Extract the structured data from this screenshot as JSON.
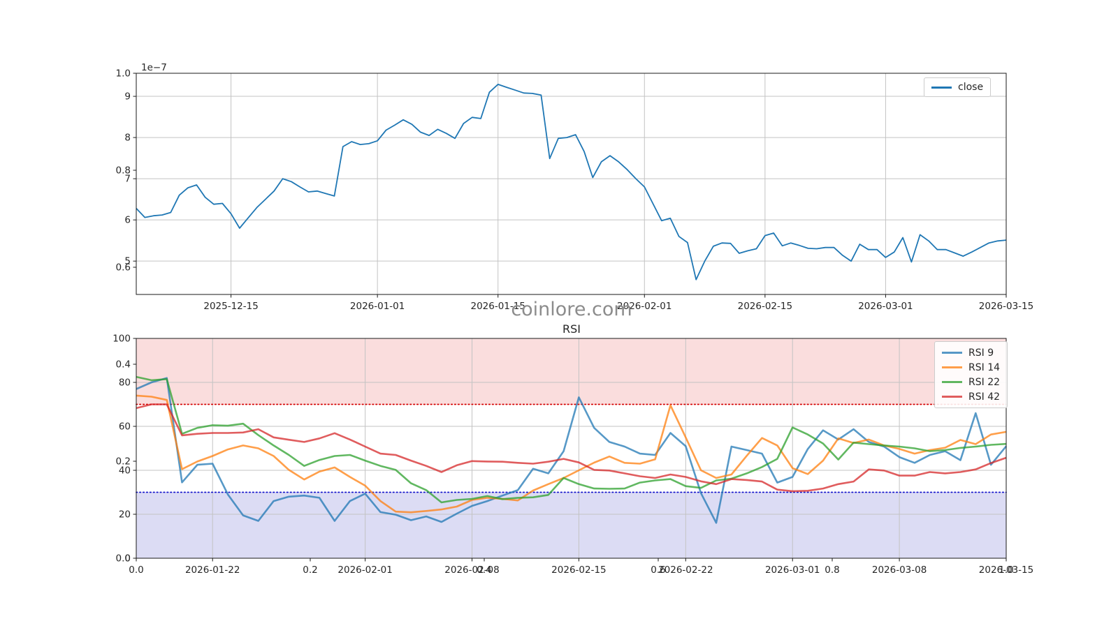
{
  "watermark": "coinlore.com",
  "colors": {
    "close_line": "#1f77b4",
    "rsi9": "rgba(31,119,180,0.75)",
    "rsi14": "rgba(255,127,14,0.75)",
    "rsi22": "rgba(44,160,44,0.75)",
    "rsi42": "rgba(214,39,40,0.75)",
    "overbought_band": "#fadddd",
    "oversold_band": "#dcdcf4",
    "overbought_line": "#d40000",
    "oversold_line": "#1414cc",
    "grid": "#c3c3c3",
    "spine": "#1a1a1a",
    "tick_label": "#262626"
  },
  "chart_data": [
    {
      "type": "line",
      "panel": "price",
      "offset_label": "1e−7",
      "legend_labels": [
        "close"
      ],
      "x_start": "2025-12-04",
      "x_end": "2026-03-15",
      "x_tick_labels": [
        "2025-12-15",
        "2026-01-01",
        "2026-01-15",
        "2026-02-01",
        "2026-02-15",
        "2026-03-01",
        "2026-03-15"
      ],
      "x_tick_days": [
        11,
        28,
        42,
        59,
        73,
        87,
        101
      ],
      "y_tick_labels": [
        "5",
        "6",
        "7",
        "8",
        "9"
      ],
      "y_ticks": [
        5,
        6,
        7,
        8,
        9
      ],
      "ylim": [
        4.19,
        9.56
      ],
      "grid": true,
      "series": [
        {
          "name": "close",
          "unit": "1e-7",
          "values": [
            6.28,
            6.06,
            6.1,
            6.12,
            6.18,
            6.6,
            6.78,
            6.85,
            6.55,
            6.38,
            6.4,
            6.15,
            5.8,
            6.05,
            6.3,
            6.5,
            6.7,
            7.0,
            6.93,
            6.8,
            6.68,
            6.7,
            6.64,
            6.58,
            7.78,
            7.9,
            7.83,
            7.85,
            7.92,
            8.18,
            8.3,
            8.43,
            8.32,
            8.13,
            8.05,
            8.2,
            8.1,
            7.98,
            8.34,
            8.49,
            8.46,
            9.1,
            9.29,
            9.22,
            9.15,
            9.08,
            9.07,
            9.03,
            7.49,
            7.98,
            8.0,
            8.07,
            7.66,
            7.03,
            7.41,
            7.56,
            7.41,
            7.22,
            7.0,
            6.8,
            6.39,
            5.98,
            6.04,
            5.6,
            5.45,
            4.55,
            5.0,
            5.36,
            5.44,
            5.43,
            5.19,
            5.25,
            5.3,
            5.62,
            5.68,
            5.37,
            5.44,
            5.38,
            5.31,
            5.3,
            5.33,
            5.33,
            5.14,
            5.0,
            5.41,
            5.28,
            5.28,
            5.09,
            5.22,
            5.57,
            4.98,
            5.64,
            5.49,
            5.28,
            5.28,
            5.2,
            5.12,
            5.22,
            5.33,
            5.44,
            5.49,
            5.51
          ]
        }
      ]
    },
    {
      "type": "line",
      "panel": "rsi",
      "title": "RSI",
      "legend_labels": [
        "RSI 9",
        "RSI 14",
        "RSI 22",
        "RSI 42"
      ],
      "x_start": "2026-01-17",
      "x_end": "2026-03-15",
      "x_tick_labels": [
        "2026-01-22",
        "2026-02-01",
        "2026-02-08",
        "2026-02-15",
        "2026-02-22",
        "2026-03-01",
        "2026-03-08",
        "2026-03-15"
      ],
      "x_tick_days": [
        5,
        15,
        22,
        29,
        36,
        43,
        50,
        57
      ],
      "y_tick_labels": [
        "0",
        "20",
        "40",
        "60",
        "80",
        "100"
      ],
      "y_ticks": [
        0,
        20,
        40,
        60,
        80,
        100
      ],
      "ylim": [
        0,
        100
      ],
      "overbought": 70,
      "oversold": 30,
      "grid": true,
      "series": [
        {
          "name": "RSI 9",
          "values": [
            77,
            80,
            82,
            34.5,
            42.5,
            43,
            29,
            19.5,
            17,
            26,
            28,
            28.5,
            27.5,
            17,
            26,
            29.4,
            21,
            19.8,
            17.3,
            19,
            16.5,
            20.3,
            23.8,
            26,
            28.5,
            31,
            40.7,
            38.6,
            48.7,
            73.2,
            59.3,
            52.9,
            50.8,
            47.6,
            47,
            57,
            51,
            29.6,
            16.1,
            50.8,
            49.2,
            47.6,
            34.4,
            37,
            49.7,
            58.2,
            54,
            58.7,
            52.9,
            50.8,
            46,
            43.4,
            47,
            48.7,
            44.6,
            66,
            42.5,
            51
          ]
        },
        {
          "name": "RSI 14",
          "values": [
            74,
            73.5,
            72,
            40.5,
            44,
            46.5,
            49.5,
            51.3,
            50,
            46.5,
            40.2,
            35.8,
            39.4,
            41.3,
            37,
            33,
            26,
            21.2,
            20.9,
            21.5,
            22.2,
            23.5,
            26.5,
            27.5,
            27,
            26.3,
            30.8,
            33.7,
            36.5,
            40,
            43.5,
            46.3,
            43.4,
            43,
            45,
            69.6,
            55,
            40,
            36.5,
            38.1,
            46.6,
            54.7,
            51.3,
            41,
            38.3,
            44.4,
            54.5,
            52.4,
            54,
            51.3,
            49.7,
            47.6,
            49.2,
            50.3,
            53.8,
            51.9,
            56.3,
            57.5
          ]
        },
        {
          "name": "RSI 22",
          "values": [
            82.5,
            81,
            81.5,
            56.6,
            59.3,
            60.5,
            60.3,
            61.2,
            56,
            51.3,
            47,
            42,
            44.7,
            46.5,
            47,
            44.4,
            42,
            40.2,
            34.1,
            31,
            25.4,
            26.5,
            27,
            28.3,
            26.9,
            27.5,
            27.7,
            28.8,
            36.5,
            33.7,
            31.7,
            31.6,
            31.7,
            34.4,
            35.4,
            36,
            32.8,
            32,
            35.4,
            36.2,
            38.6,
            41.5,
            45.2,
            59.5,
            56.3,
            52.2,
            44.9,
            52.6,
            51.9,
            51.3,
            50.8,
            50,
            48.7,
            49.2,
            50.2,
            50.8,
            51.6,
            52
          ]
        },
        {
          "name": "RSI 42",
          "values": [
            68.3,
            70,
            70,
            55.9,
            56.6,
            57,
            57,
            57.2,
            58.7,
            55,
            53.9,
            52.9,
            54.5,
            56.9,
            54,
            50.8,
            47.6,
            47,
            44.4,
            42,
            39.2,
            42.3,
            44.2,
            44,
            43.9,
            43.4,
            43,
            43.9,
            45.2,
            43.6,
            40.2,
            39.9,
            38.6,
            37.3,
            36.5,
            38.1,
            37,
            35,
            33.7,
            36,
            35.6,
            34.9,
            31.2,
            30.5,
            30.7,
            31.7,
            33.7,
            34.9,
            40.4,
            39.9,
            37.6,
            37.6,
            39.2,
            38.6,
            39.2,
            40.4,
            43.3,
            45.7
          ]
        }
      ]
    }
  ],
  "overlay_axis": {
    "x_tick_labels": [
      "0.0",
      "0.2",
      "0.4",
      "0.6",
      "0.8",
      "1.0"
    ],
    "y_tick_labels": [
      "0.0",
      "0.2",
      "0.4",
      "0.6",
      "0.8",
      "1.0"
    ]
  }
}
